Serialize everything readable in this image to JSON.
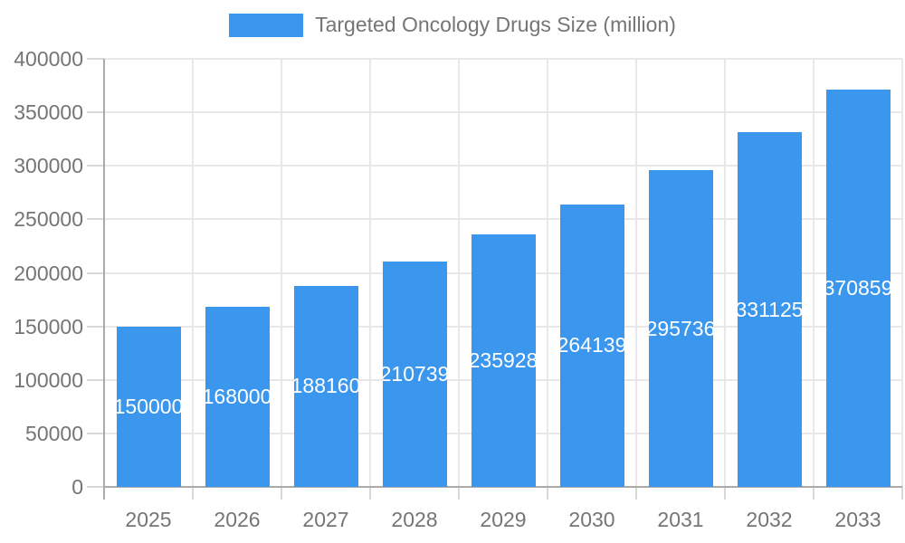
{
  "legend": {
    "label": "Targeted Oncology Drugs Size (million)"
  },
  "chart_data": {
    "type": "bar",
    "title": "",
    "xlabel": "",
    "ylabel": "",
    "categories": [
      "2025",
      "2026",
      "2027",
      "2028",
      "2029",
      "2030",
      "2031",
      "2032",
      "2033"
    ],
    "series": [
      {
        "name": "Targeted Oncology Drugs Size (million)",
        "values": [
          150000,
          168000,
          188160,
          210739,
          235928,
          264139,
          295736,
          331125,
          370859
        ]
      }
    ],
    "bar_value_labels": [
      "150000",
      "168000",
      "188160",
      "210739",
      "235928",
      "264139",
      "295736",
      "331125",
      "370859"
    ],
    "ylim": [
      0,
      400000
    ],
    "ytick_step": 50000,
    "yticks": [
      0,
      50000,
      100000,
      150000,
      200000,
      250000,
      300000,
      350000,
      400000
    ],
    "grid": true,
    "legend_position": "top",
    "value_label_position": "inside-center"
  },
  "colors": {
    "bar": "#3B97ED",
    "grid": "#E8E8E8",
    "axis": "#ABABAB",
    "tick": "#D8D8D8",
    "tick_text": "#757575",
    "value_label": "#FFFFFF",
    "background": "#FFFFFF"
  }
}
